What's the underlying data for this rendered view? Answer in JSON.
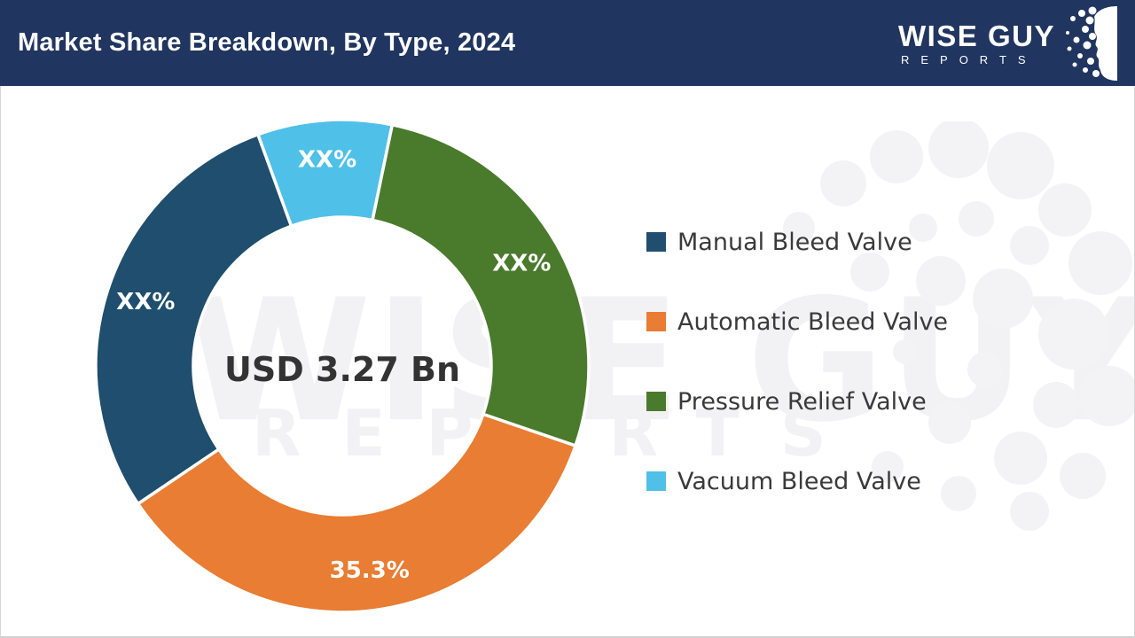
{
  "header": {
    "title": "Market Share Breakdown, By Type, 2024",
    "brand": {
      "name": "WISE GUY",
      "sub": "REPORTS"
    }
  },
  "watermark": {
    "line1": "WISE GUY",
    "line2": "REPORTS"
  },
  "colors": {
    "header_bg": "#20355F",
    "manual_bleed_valve": "#1F4E6E",
    "automatic_bleed_valve": "#E87D33",
    "pressure_relief_valve": "#4A7A2C",
    "vacuum_bleed_valve": "#4FC0E8",
    "center_text": "#333333",
    "segment_gap": "#FFFFFF"
  },
  "chart_data": {
    "type": "pie",
    "subtype": "donut",
    "title": "Market Share Breakdown, By Type, 2024",
    "center_label": "USD 3.27 Bn",
    "units": "percent of market share",
    "start_angle_deg": -20,
    "inner_radius_ratio": 0.604,
    "legend_position": "right",
    "segments": [
      {
        "label": "Vacuum Bleed Valve",
        "value": 8.8,
        "display": "XX%",
        "color": "#4FC0E8"
      },
      {
        "label": "Pressure Relief Valve",
        "value": 27.0,
        "display": "XX%",
        "color": "#4A7A2C"
      },
      {
        "label": "Automatic Bleed Valve",
        "value": 35.3,
        "display": "35.3%",
        "color": "#E87D33"
      },
      {
        "label": "Manual Bleed Valve",
        "value": 28.9,
        "display": "XX%",
        "color": "#1F4E6E"
      }
    ]
  },
  "legend": {
    "items": [
      {
        "label": "Manual Bleed Valve",
        "color": "#1F4E6E"
      },
      {
        "label": "Automatic Bleed Valve",
        "color": "#E87D33"
      },
      {
        "label": "Pressure Relief Valve",
        "color": "#4A7A2C"
      },
      {
        "label": "Vacuum Bleed Valve",
        "color": "#4FC0E8"
      }
    ]
  }
}
